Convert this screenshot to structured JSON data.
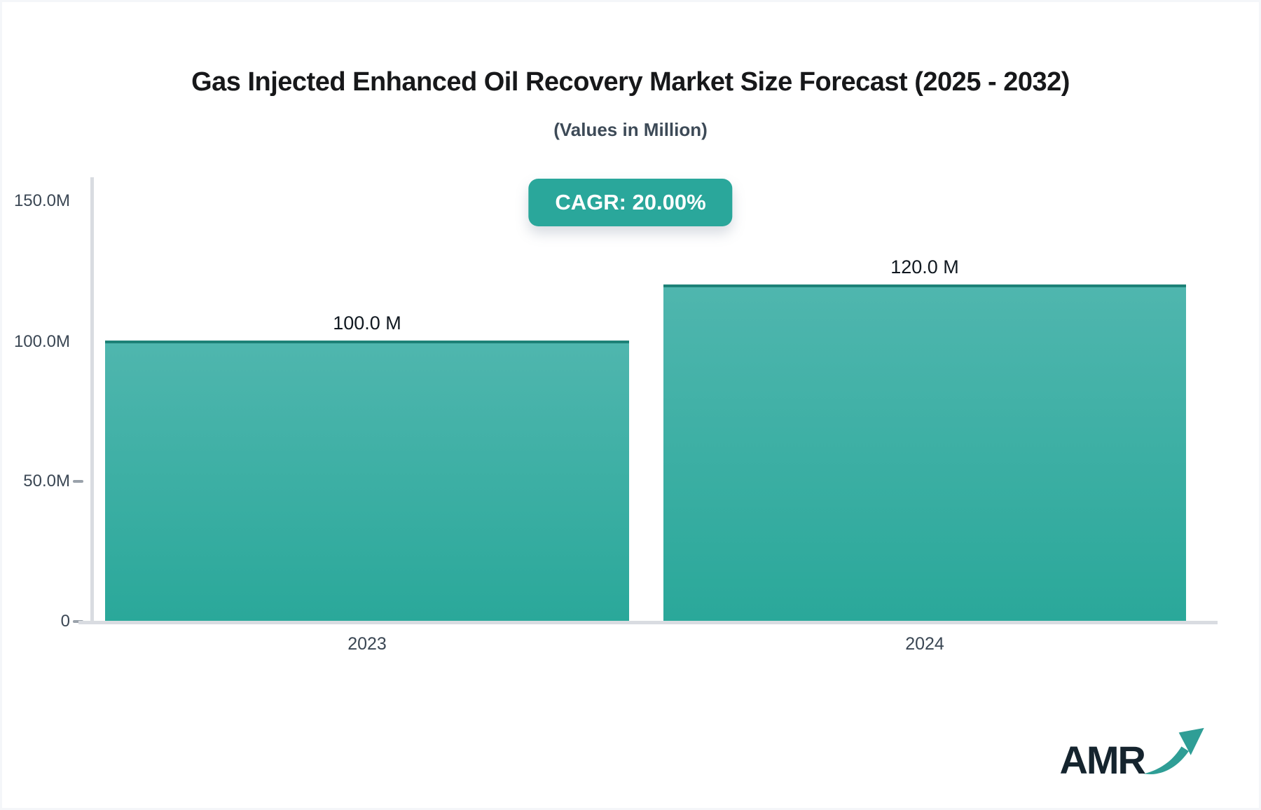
{
  "page": {
    "title": "Gas Injected Enhanced Oil Recovery Market Size Forecast (2025 - 2032)",
    "subtitle": "(Values in Million)",
    "cagr_label": "CAGR: 20.00%",
    "brand_name": "AMR"
  },
  "colors": {
    "accent_teal": "#2aa79b",
    "bar_gradient_top": "#4fb6ae",
    "bar_gradient_bottom": "#2aa89a",
    "bar_top_border": "#1d8177",
    "axis_line": "#d9dce1",
    "tick_text": "#3b4754",
    "value_text": "#101820",
    "logo_navy": "#15242e",
    "logo_arrow_teal": "#2f9e96"
  },
  "chart_data": {
    "type": "bar",
    "title": "Gas Injected Enhanced Oil Recovery Market Size Forecast (2025 - 2032)",
    "subtitle": "(Values in Million)",
    "cagr": "20.00%",
    "categories": [
      "2023",
      "2024"
    ],
    "values": [
      100.0,
      120.0
    ],
    "value_labels": [
      "100.0 M",
      "120.0 M"
    ],
    "ylim": [
      0,
      150
    ],
    "yticks": [
      150,
      100,
      50,
      0
    ],
    "ytick_labels": [
      "150.0M",
      "100.0M",
      "50.0M",
      "0"
    ],
    "xlabel": "",
    "ylabel": "",
    "grid": "off",
    "legend": "none"
  }
}
